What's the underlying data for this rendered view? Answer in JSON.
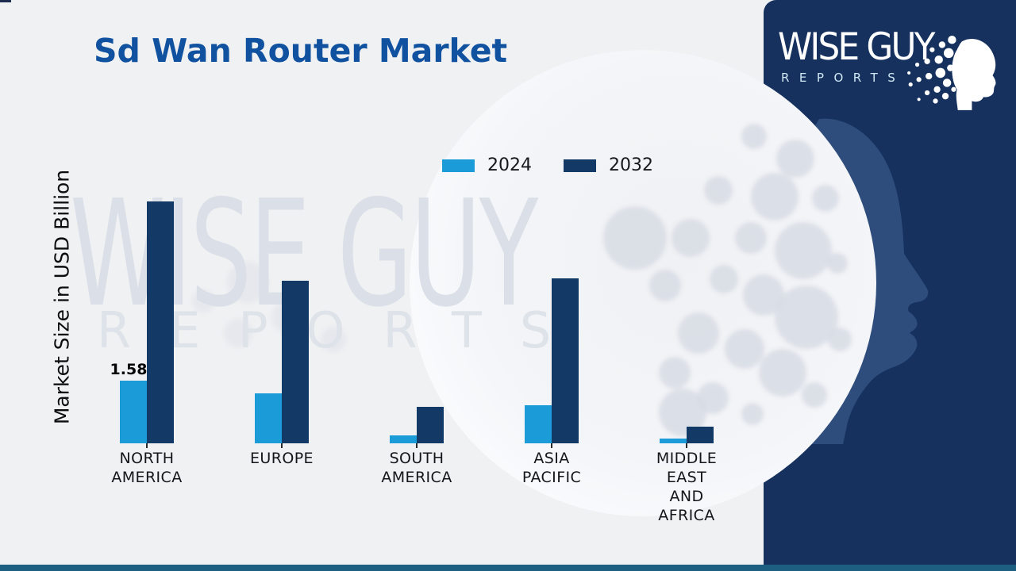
{
  "header": {
    "title": "Sd Wan Router Market"
  },
  "watermark": {
    "line1": "WISE GUY",
    "line2": "REPORTS"
  },
  "logo": {
    "brand_line1": "WISE GUY",
    "brand_line2": "REPORTS"
  },
  "colors": {
    "title_blue": "#10529f",
    "series_2024": "#1b9cd9",
    "series_2032": "#133a66",
    "brand_panel_navy": "#16315e",
    "face_silhouette_blue": "#2e4d7c",
    "bottom_bar_teal": "#1c5f80",
    "background": "#f0f1f3",
    "watermark_gray": "#dbdfe7",
    "label_black": "#141619"
  },
  "chart_data": {
    "type": "bar",
    "title": "Sd Wan Router Market",
    "xlabel": "",
    "ylabel": "Market Size in USD Billion",
    "categories": [
      "NORTH AMERICA",
      "EUROPE",
      "SOUTH AMERICA",
      "ASIA PACIFIC",
      "MIDDLE EAST AND AFRICA"
    ],
    "category_lines": [
      [
        "NORTH",
        "AMERICA"
      ],
      [
        "EUROPE"
      ],
      [
        "SOUTH",
        "AMERICA"
      ],
      [
        "ASIA",
        "PACIFIC"
      ],
      [
        "MIDDLE",
        "EAST",
        "AND",
        "AFRICA"
      ]
    ],
    "series": [
      {
        "name": "2024",
        "color": "#1b9cd9",
        "values": [
          1.58,
          1.26,
          0.2,
          0.95,
          0.11
        ]
      },
      {
        "name": "2032",
        "color": "#133a66",
        "values": [
          6.1,
          4.1,
          0.92,
          4.16,
          0.42
        ]
      }
    ],
    "data_labels": [
      {
        "series": 0,
        "category": 0,
        "text": "1.58"
      }
    ],
    "legend_position": "top-center",
    "grid": false,
    "y_axis_ticks_visible": false,
    "ylim": [
      0,
      7
    ]
  }
}
